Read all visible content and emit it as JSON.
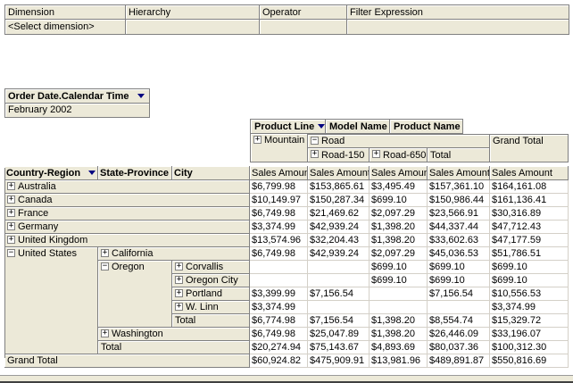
{
  "colors": {
    "header_bg": "#ece9d8",
    "dropdown_arrow": "#000080",
    "gridline": "#d4d0c8"
  },
  "filter_grid": {
    "headers": [
      "Dimension",
      "Hierarchy",
      "Operator",
      "Filter Expression"
    ],
    "row": {
      "dimension": "<Select dimension>",
      "hierarchy": "",
      "operator": "",
      "filter_expression": ""
    }
  },
  "slicer": {
    "field": "Order Date.Calendar Time",
    "value": "February 2002"
  },
  "pivot": {
    "column_fields": [
      {
        "label": "Product Line",
        "has_dropdown": true
      },
      {
        "label": "Model Name",
        "has_dropdown": false
      },
      {
        "label": "Product Name",
        "has_dropdown": false
      }
    ],
    "row_fields": [
      {
        "label": "Country-Region",
        "has_dropdown": true
      },
      {
        "label": "State-Province",
        "has_dropdown": false
      },
      {
        "label": "City",
        "has_dropdown": false
      }
    ],
    "measure": "Sales Amount",
    "col_groups": {
      "mountain": {
        "label": "Mountain",
        "state": "collapsed"
      },
      "road": {
        "label": "Road",
        "state": "expanded"
      },
      "road150": {
        "label": "Road-150",
        "state": "collapsed"
      },
      "road650": {
        "label": "Road-650",
        "state": "collapsed"
      },
      "road_total": {
        "label": "Total"
      },
      "grand_total": {
        "label": "Grand Total"
      }
    },
    "rows": [
      {
        "headers": [
          {
            "text": "Australia",
            "state": "collapsed",
            "colspan": 3
          }
        ],
        "values": [
          "$6,799.98",
          "$153,865.61",
          "$3,495.49",
          "$157,361.10",
          "$164,161.08"
        ]
      },
      {
        "headers": [
          {
            "text": "Canada",
            "state": "collapsed",
            "colspan": 3
          }
        ],
        "values": [
          "$10,149.97",
          "$150,287.34",
          "$699.10",
          "$150,986.44",
          "$161,136.41"
        ]
      },
      {
        "headers": [
          {
            "text": "France",
            "state": "collapsed",
            "colspan": 3
          }
        ],
        "values": [
          "$6,749.98",
          "$21,469.62",
          "$2,097.29",
          "$23,566.91",
          "$30,316.89"
        ]
      },
      {
        "headers": [
          {
            "text": "Germany",
            "state": "collapsed",
            "colspan": 3
          }
        ],
        "values": [
          "$3,374.99",
          "$42,939.24",
          "$1,398.20",
          "$44,337.44",
          "$47,712.43"
        ]
      },
      {
        "headers": [
          {
            "text": "United Kingdom",
            "state": "collapsed",
            "colspan": 3
          }
        ],
        "values": [
          "$13,574.96",
          "$32,204.43",
          "$1,398.20",
          "$33,602.63",
          "$47,177.59"
        ]
      },
      {
        "headers": [
          {
            "text": "United States",
            "state": "expanded",
            "rowspan": 8
          },
          {
            "text": "California",
            "state": "collapsed",
            "colspan": 2
          }
        ],
        "values": [
          "$6,749.98",
          "$42,939.24",
          "$2,097.29",
          "$45,036.53",
          "$51,786.51"
        ]
      },
      {
        "headers": [
          {
            "text": "Oregon",
            "state": "expanded",
            "rowspan": 5
          },
          {
            "text": "Corvallis",
            "state": "collapsed"
          }
        ],
        "values": [
          "",
          "",
          "$699.10",
          "$699.10",
          "$699.10"
        ]
      },
      {
        "headers": [
          {
            "text": "Oregon City",
            "state": "collapsed"
          }
        ],
        "values": [
          "",
          "",
          "$699.10",
          "$699.10",
          "$699.10"
        ]
      },
      {
        "headers": [
          {
            "text": "Portland",
            "state": "collapsed"
          }
        ],
        "values": [
          "$3,399.99",
          "$7,156.54",
          "",
          "$7,156.54",
          "$10,556.53"
        ]
      },
      {
        "headers": [
          {
            "text": "W. Linn",
            "state": "collapsed"
          }
        ],
        "values": [
          "$3,374.99",
          "",
          "",
          "",
          "$3,374.99"
        ]
      },
      {
        "headers": [
          {
            "text": "Total"
          }
        ],
        "values": [
          "$6,774.98",
          "$7,156.54",
          "$1,398.20",
          "$8,554.74",
          "$15,329.72"
        ]
      },
      {
        "headers": [
          {
            "text": "Washington",
            "state": "collapsed",
            "colspan": 2
          }
        ],
        "values": [
          "$6,749.98",
          "$25,047.89",
          "$1,398.20",
          "$26,446.09",
          "$33,196.07"
        ]
      },
      {
        "headers": [
          {
            "text": "Total",
            "colspan": 2
          }
        ],
        "values": [
          "$20,274.94",
          "$75,143.67",
          "$4,893.69",
          "$80,037.36",
          "$100,312.30"
        ]
      },
      {
        "headers": [
          {
            "text": "Grand Total",
            "colspan": 3
          }
        ],
        "values": [
          "$60,924.82",
          "$475,909.91",
          "$13,981.96",
          "$489,891.87",
          "$550,816.69"
        ]
      }
    ]
  }
}
